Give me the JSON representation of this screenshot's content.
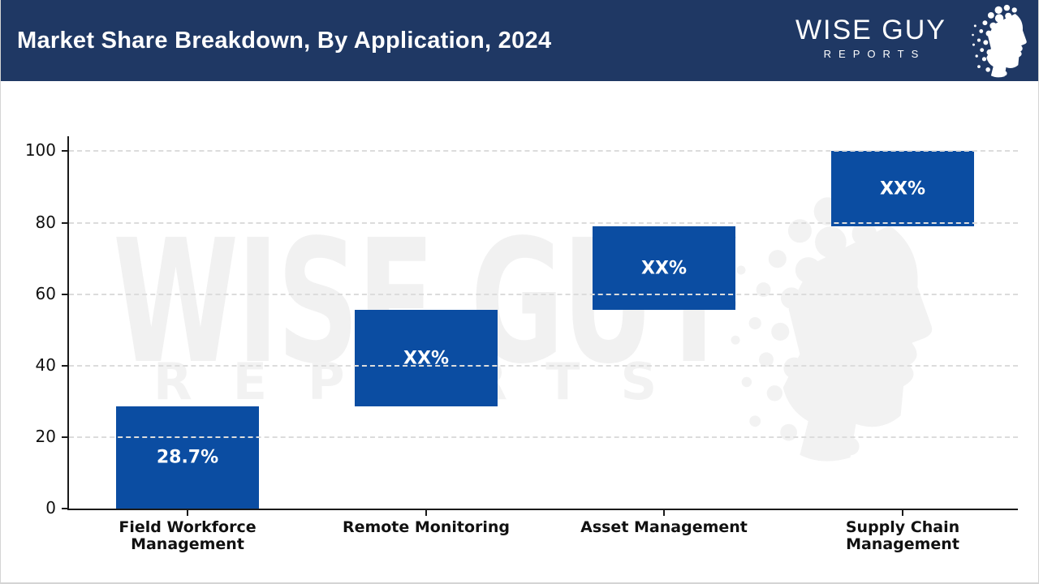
{
  "header": {
    "title": "Market Share Breakdown, By Application, 2024",
    "bg_color": "#1f3864",
    "logo": {
      "line1": "WISE GUY",
      "line2": "REPORTS",
      "icon": "dotted-face-profile"
    }
  },
  "watermark": {
    "line1": "WISE GUY",
    "line2": "REPORTS",
    "icon": "dotted-face-profile"
  },
  "chart_data": {
    "type": "bar",
    "subtype": "waterfall",
    "title": "Market Share Breakdown, By Application, 2024",
    "categories": [
      "Field Workforce Management",
      "Remote Monitoring",
      "Asset Management",
      "Supply Chain Management"
    ],
    "segments": [
      {
        "start": 0,
        "end": 28.7,
        "label": "28.7%"
      },
      {
        "start": 28.7,
        "end": 55.5,
        "label": "XX%"
      },
      {
        "start": 55.5,
        "end": 79.0,
        "label": "XX%"
      },
      {
        "start": 79.0,
        "end": 100.0,
        "label": "XX%"
      }
    ],
    "yticks": [
      0,
      20,
      40,
      60,
      80,
      100
    ],
    "ylim": [
      0,
      105
    ],
    "bar_color": "#0b4da2",
    "label_color": "#ffffff",
    "grid": "horizontal-dashed",
    "legend": "none"
  }
}
